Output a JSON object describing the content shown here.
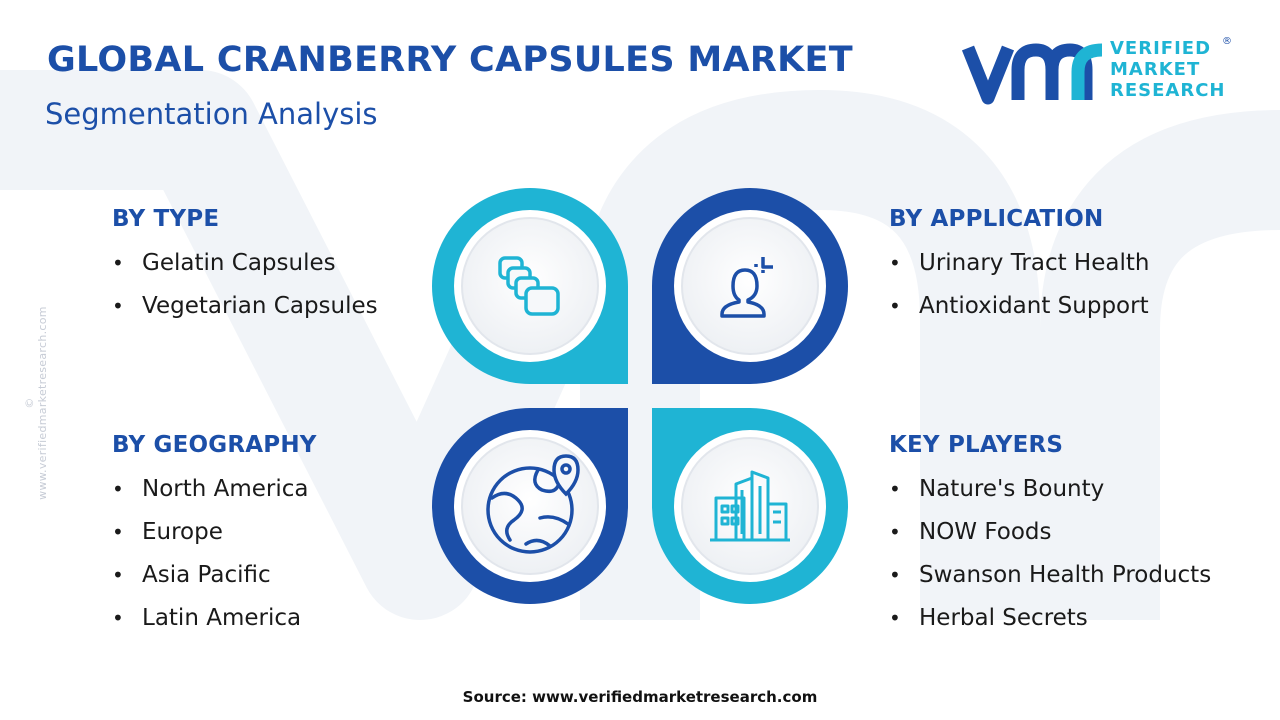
{
  "header": {
    "title": "GLOBAL CRANBERRY CAPSULES MARKET",
    "subtitle": "Segmentation Analysis"
  },
  "logo": {
    "lines": [
      "VERIFIED",
      "MARKET",
      "RESEARCH"
    ],
    "registered": "®"
  },
  "side_url": "© www.verifiedmarketresearch.com",
  "segments": {
    "type": {
      "heading": "BY TYPE",
      "items": [
        "Gelatin Capsules",
        "Vegetarian Capsules"
      ],
      "icon": "capsules-icon"
    },
    "application": {
      "heading": "BY APPLICATION",
      "items": [
        "Urinary Tract Health",
        "Antioxidant Support"
      ],
      "icon": "person-health-icon"
    },
    "geography": {
      "heading": "BY GEOGRAPHY",
      "items": [
        "North America",
        "Europe",
        "Asia Pacific",
        "Latin America"
      ],
      "icon": "globe-pin-icon"
    },
    "players": {
      "heading": "KEY PLAYERS",
      "items": [
        "Nature's Bounty",
        "NOW Foods",
        "Swanson Health Products",
        "Herbal Secrets"
      ],
      "icon": "buildings-icon"
    }
  },
  "footer": {
    "source": "Source: www.verifiedmarketresearch.com"
  },
  "colors": {
    "navy": "#1c4fa8",
    "cyan": "#1fb4d4",
    "text": "#1a1a1a"
  }
}
